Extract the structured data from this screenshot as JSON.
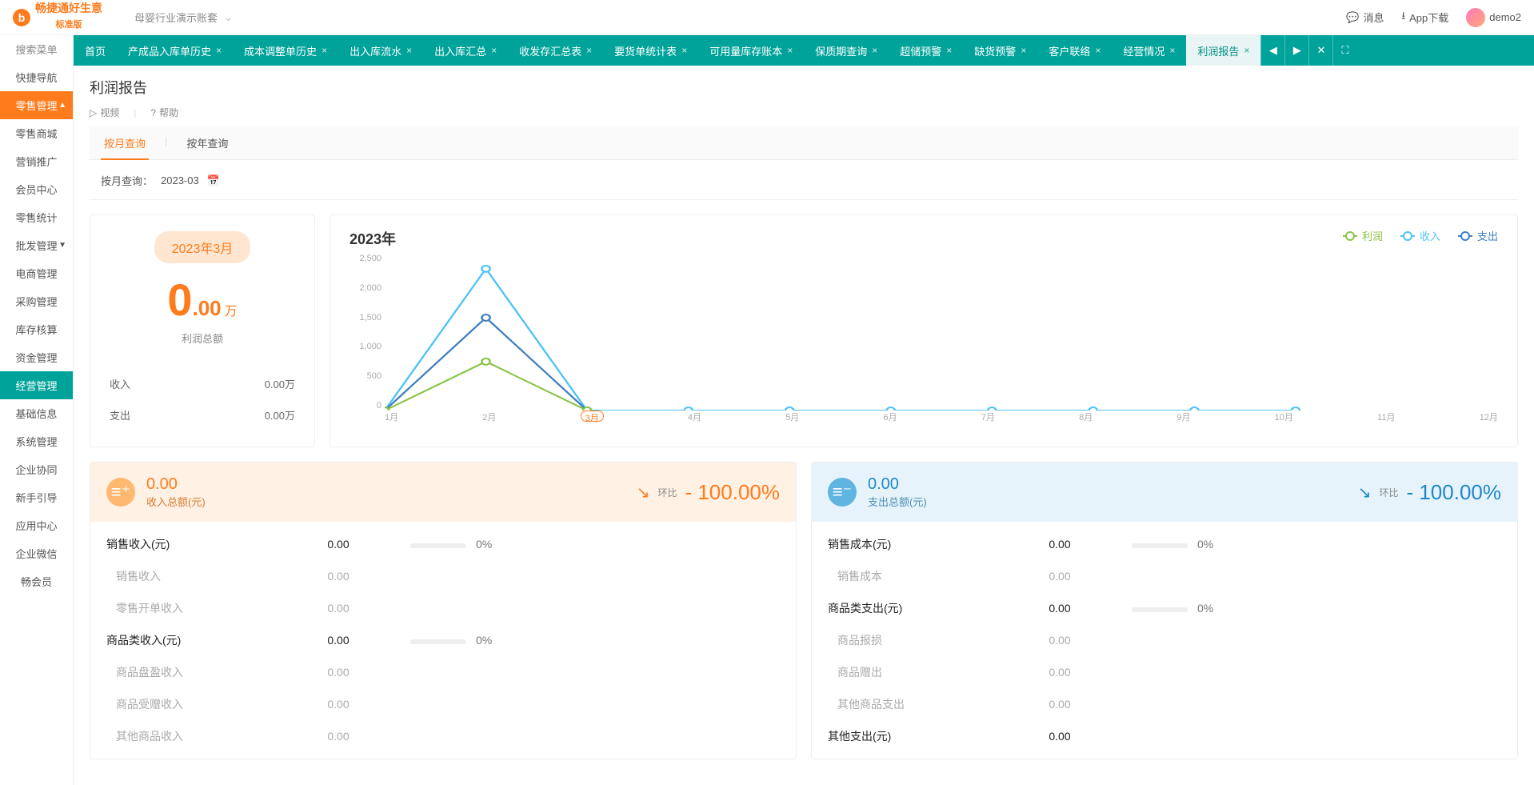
{
  "logo": {
    "brand": "畅捷通好生意",
    "edition": "标准版"
  },
  "accountSelect": "母婴行业演示账套",
  "topRight": {
    "msg": "消息",
    "appdl": "App下载",
    "user": "demo2"
  },
  "sidebar": {
    "items": [
      {
        "label": "搜索菜单",
        "cls": "search"
      },
      {
        "label": "快捷导航"
      },
      {
        "label": "零售管理",
        "cls": "active-orange",
        "caret": "▲"
      },
      {
        "label": "零售商城"
      },
      {
        "label": "营销推广"
      },
      {
        "label": "会员中心"
      },
      {
        "label": "零售统计"
      },
      {
        "label": "批发管理",
        "caret": "▼"
      },
      {
        "label": "电商管理"
      },
      {
        "label": "采购管理"
      },
      {
        "label": "库存核算"
      },
      {
        "label": "资金管理"
      },
      {
        "label": "经营管理",
        "cls": "active-teal"
      },
      {
        "label": "基础信息"
      },
      {
        "label": "系统管理"
      },
      {
        "label": "企业协同"
      },
      {
        "label": "新手引导"
      },
      {
        "label": "应用中心"
      },
      {
        "label": "企业微信"
      },
      {
        "label": "畅会员"
      }
    ]
  },
  "tabs": [
    {
      "label": "首页",
      "closable": false
    },
    {
      "label": "产成品入库单历史",
      "closable": true
    },
    {
      "label": "成本调整单历史",
      "closable": true
    },
    {
      "label": "出入库流水",
      "closable": true
    },
    {
      "label": "出入库汇总",
      "closable": true
    },
    {
      "label": "收发存汇总表",
      "closable": true
    },
    {
      "label": "要货单统计表",
      "closable": true
    },
    {
      "label": "可用量库存账本",
      "closable": true
    },
    {
      "label": "保质期查询",
      "closable": true
    },
    {
      "label": "超储预警",
      "closable": true
    },
    {
      "label": "缺货预警",
      "closable": true
    },
    {
      "label": "客户联络",
      "closable": true
    },
    {
      "label": "经营情况",
      "closable": true
    },
    {
      "label": "利润报告",
      "closable": true,
      "active": true
    }
  ],
  "page": {
    "title": "利润报告",
    "help": {
      "video": "视频",
      "help": "帮助"
    },
    "queryTabs": {
      "byMonth": "按月查询",
      "byYear": "按年查询"
    },
    "monthLabel": "按月查询：",
    "monthValue": "2023-03"
  },
  "summary": {
    "chip": "2023年3月",
    "bigInt": "0",
    "bigFrac": ".00",
    "bigUnit": "万",
    "profitLabel": "利润总额",
    "incomeLabel": "收入",
    "incomeVal": "0.00万",
    "expenseLabel": "支出",
    "expenseVal": "0.00万"
  },
  "chart": {
    "title": "2023年",
    "legend": {
      "profit": "利润",
      "income": "收入",
      "expense": "支出"
    },
    "colors": {
      "profit": "#8bc34a",
      "income": "#4fc3f7",
      "expense": "#3f7fbf"
    },
    "yticks": [
      "2,500",
      "2,000",
      "1,500",
      "1,000",
      "500",
      "0"
    ],
    "xticks": [
      "1月",
      "2月",
      "3月",
      "4月",
      "5月",
      "6月",
      "7月",
      "8月",
      "9月",
      "10月",
      "11月",
      "12月"
    ],
    "currentX": "3月",
    "ymax": 2500,
    "series": {
      "profit": [
        0,
        780,
        0,
        0,
        0,
        0,
        0,
        0,
        0,
        0,
        0,
        0
      ],
      "income": [
        0,
        2260,
        0,
        0,
        0,
        0,
        0,
        0,
        0,
        0,
        0,
        0
      ],
      "expense": [
        0,
        1480,
        0,
        0,
        0,
        0,
        0,
        0,
        0,
        0,
        0,
        0
      ]
    }
  },
  "incomePanel": {
    "value": "0.00",
    "label": "收入总额(元)",
    "hb": "环比",
    "pct": "- 100.00%",
    "rows": [
      {
        "name": "销售收入(元)",
        "val": "0.00",
        "bold": true,
        "pct": "0%"
      },
      {
        "name": "销售收入",
        "val": "0.00",
        "sub": true
      },
      {
        "name": "零售开单收入",
        "val": "0.00",
        "sub": true
      },
      {
        "name": "商品类收入(元)",
        "val": "0.00",
        "bold": true,
        "pct": "0%"
      },
      {
        "name": "商品盘盈收入",
        "val": "0.00",
        "sub": true
      },
      {
        "name": "商品受赠收入",
        "val": "0.00",
        "sub": true
      },
      {
        "name": "其他商品收入",
        "val": "0.00",
        "sub": true
      }
    ]
  },
  "expensePanel": {
    "value": "0.00",
    "label": "支出总额(元)",
    "hb": "环比",
    "pct": "- 100.00%",
    "rows": [
      {
        "name": "销售成本(元)",
        "val": "0.00",
        "bold": true,
        "pct": "0%"
      },
      {
        "name": "销售成本",
        "val": "0.00",
        "sub": true
      },
      {
        "name": "商品类支出(元)",
        "val": "0.00",
        "bold": true,
        "pct": "0%"
      },
      {
        "name": "商品报损",
        "val": "0.00",
        "sub": true
      },
      {
        "name": "商品赠出",
        "val": "0.00",
        "sub": true
      },
      {
        "name": "其他商品支出",
        "val": "0.00",
        "sub": true
      },
      {
        "name": "其他支出(元)",
        "val": "0.00",
        "bold": true
      }
    ]
  }
}
